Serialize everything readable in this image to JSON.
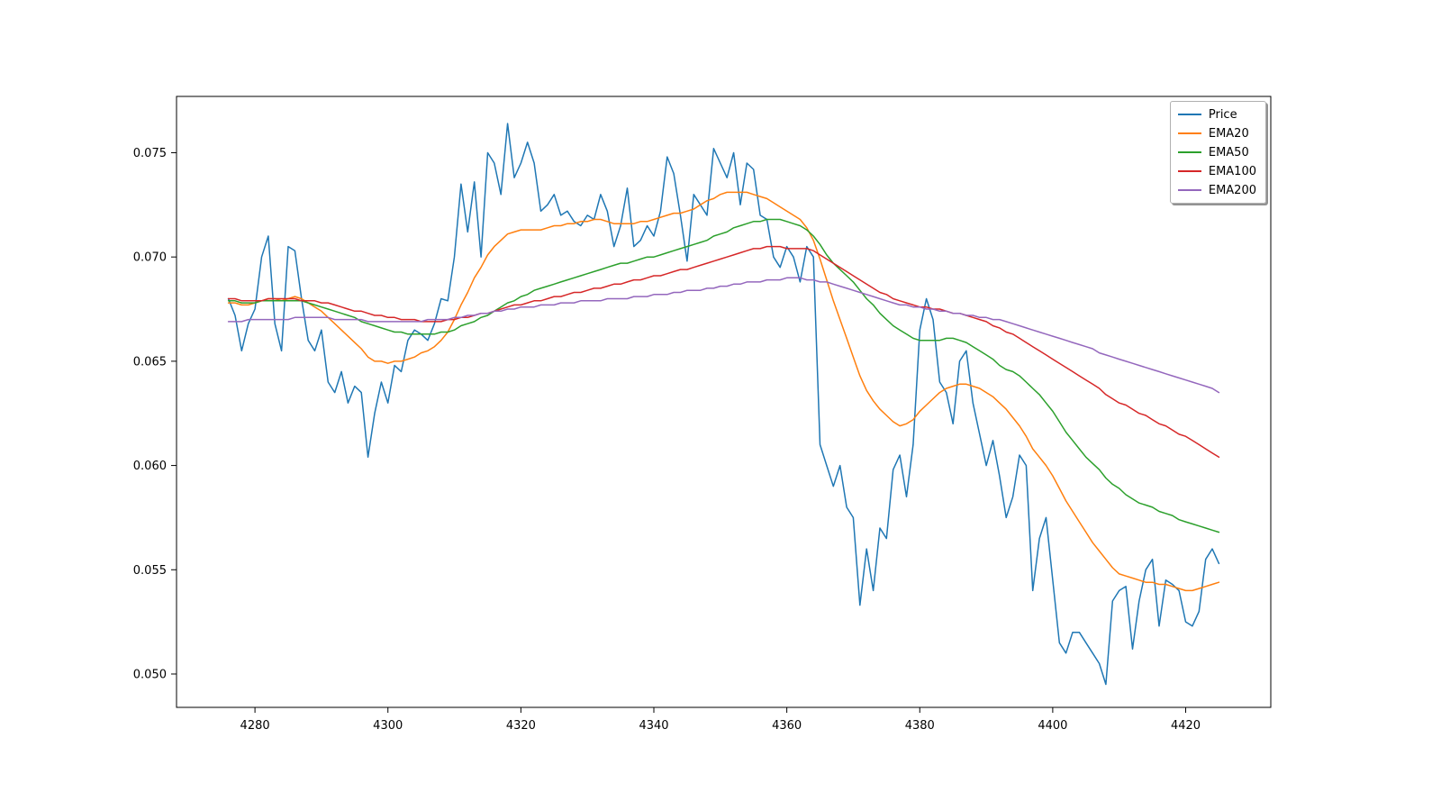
{
  "figure": {
    "background": "#ffffff",
    "axes_border_color": "#000000"
  },
  "legend": {
    "position": "top-right",
    "entries": [
      {
        "label": "Price",
        "color": "#1f77b4"
      },
      {
        "label": "EMA20",
        "color": "#ff7f0e"
      },
      {
        "label": "EMA50",
        "color": "#2ca02c"
      },
      {
        "label": "EMA100",
        "color": "#d62728"
      },
      {
        "label": "EMA200",
        "color": "#9467bd"
      }
    ]
  },
  "chart_data": {
    "type": "line",
    "title": "",
    "xlabel": "",
    "ylabel": "",
    "grid": false,
    "legend_position": "upper right",
    "xlim": [
      4268.2,
      4432.8
    ],
    "ylim": [
      0.0484,
      0.0777
    ],
    "x_ticks": [
      4280,
      4300,
      4320,
      4340,
      4360,
      4380,
      4400,
      4420
    ],
    "y_ticks": [
      0.05,
      0.055,
      0.06,
      0.065,
      0.07,
      0.075
    ],
    "x_start": 4276,
    "x_step": 1,
    "series": [
      {
        "name": "Price",
        "color": "#1f77b4",
        "values": [
          0.068,
          0.0672,
          0.0655,
          0.0668,
          0.0675,
          0.07,
          0.071,
          0.0668,
          0.0655,
          0.0705,
          0.0703,
          0.068,
          0.066,
          0.0655,
          0.0665,
          0.064,
          0.0635,
          0.0645,
          0.063,
          0.0638,
          0.0635,
          0.0604,
          0.0625,
          0.064,
          0.063,
          0.0648,
          0.0645,
          0.066,
          0.0665,
          0.0663,
          0.066,
          0.0668,
          0.068,
          0.0679,
          0.07,
          0.0735,
          0.0712,
          0.0736,
          0.07,
          0.075,
          0.0745,
          0.073,
          0.0764,
          0.0738,
          0.0745,
          0.0755,
          0.0745,
          0.0722,
          0.0725,
          0.073,
          0.072,
          0.0722,
          0.0717,
          0.0715,
          0.072,
          0.0718,
          0.073,
          0.0722,
          0.0705,
          0.0715,
          0.0733,
          0.0705,
          0.0708,
          0.0715,
          0.071,
          0.0722,
          0.0748,
          0.074,
          0.072,
          0.0698,
          0.073,
          0.0725,
          0.072,
          0.0752,
          0.0745,
          0.0738,
          0.075,
          0.0725,
          0.0745,
          0.0742,
          0.072,
          0.0718,
          0.07,
          0.0695,
          0.0705,
          0.07,
          0.0688,
          0.0705,
          0.07,
          0.061,
          0.06,
          0.059,
          0.06,
          0.058,
          0.0575,
          0.0533,
          0.056,
          0.054,
          0.057,
          0.0565,
          0.0598,
          0.0605,
          0.0585,
          0.061,
          0.0665,
          0.068,
          0.067,
          0.064,
          0.0635,
          0.062,
          0.065,
          0.0655,
          0.063,
          0.0615,
          0.06,
          0.0612,
          0.0595,
          0.0575,
          0.0585,
          0.0605,
          0.06,
          0.054,
          0.0565,
          0.0575,
          0.0545,
          0.0515,
          0.051,
          0.052,
          0.052,
          0.0515,
          0.051,
          0.0505,
          0.0495,
          0.0535,
          0.054,
          0.0542,
          0.0512,
          0.0535,
          0.055,
          0.0555,
          0.0523,
          0.0545,
          0.0543,
          0.054,
          0.0525,
          0.0523,
          0.053,
          0.0555,
          0.056,
          0.0553
        ]
      },
      {
        "name": "EMA20",
        "color": "#ff7f0e",
        "values": [
          0.0678,
          0.0678,
          0.0677,
          0.0677,
          0.0678,
          0.0679,
          0.068,
          0.068,
          0.0679,
          0.068,
          0.0681,
          0.068,
          0.0678,
          0.0676,
          0.0674,
          0.0671,
          0.0668,
          0.0665,
          0.0662,
          0.0659,
          0.0656,
          0.0652,
          0.065,
          0.065,
          0.0649,
          0.065,
          0.065,
          0.0651,
          0.0652,
          0.0654,
          0.0655,
          0.0657,
          0.066,
          0.0664,
          0.067,
          0.0677,
          0.0683,
          0.069,
          0.0695,
          0.0701,
          0.0705,
          0.0708,
          0.0711,
          0.0712,
          0.0713,
          0.0713,
          0.0713,
          0.0713,
          0.0714,
          0.0715,
          0.0715,
          0.0716,
          0.0716,
          0.0717,
          0.0717,
          0.0718,
          0.0718,
          0.0717,
          0.0716,
          0.0716,
          0.0716,
          0.0716,
          0.0717,
          0.0717,
          0.0718,
          0.0719,
          0.072,
          0.0721,
          0.0721,
          0.0722,
          0.0723,
          0.0725,
          0.0727,
          0.0728,
          0.073,
          0.0731,
          0.0731,
          0.0731,
          0.0731,
          0.073,
          0.0729,
          0.0728,
          0.0726,
          0.0724,
          0.0722,
          0.072,
          0.0718,
          0.0714,
          0.0708,
          0.0699,
          0.0689,
          0.0679,
          0.067,
          0.0661,
          0.0652,
          0.0643,
          0.0636,
          0.0631,
          0.0627,
          0.0624,
          0.0621,
          0.0619,
          0.062,
          0.0622,
          0.0626,
          0.0629,
          0.0632,
          0.0635,
          0.0637,
          0.0638,
          0.0639,
          0.0639,
          0.0638,
          0.0637,
          0.0635,
          0.0633,
          0.063,
          0.0627,
          0.0623,
          0.0619,
          0.0614,
          0.0608,
          0.0604,
          0.06,
          0.0595,
          0.0589,
          0.0583,
          0.0578,
          0.0573,
          0.0568,
          0.0563,
          0.0559,
          0.0555,
          0.0551,
          0.0548,
          0.0547,
          0.0546,
          0.0545,
          0.0544,
          0.0544,
          0.0543,
          0.0543,
          0.0542,
          0.0541,
          0.054,
          0.054,
          0.0541,
          0.0542,
          0.0543,
          0.0544
        ]
      },
      {
        "name": "EMA50",
        "color": "#2ca02c",
        "values": [
          0.0679,
          0.0679,
          0.0678,
          0.0678,
          0.0678,
          0.0679,
          0.0679,
          0.0679,
          0.0679,
          0.0679,
          0.0679,
          0.0679,
          0.0678,
          0.0677,
          0.0676,
          0.0675,
          0.0674,
          0.0673,
          0.0672,
          0.0671,
          0.0669,
          0.0668,
          0.0667,
          0.0666,
          0.0665,
          0.0664,
          0.0664,
          0.0663,
          0.0663,
          0.0663,
          0.0663,
          0.0663,
          0.0664,
          0.0664,
          0.0665,
          0.0667,
          0.0668,
          0.0669,
          0.0671,
          0.0672,
          0.0674,
          0.0676,
          0.0678,
          0.0679,
          0.0681,
          0.0682,
          0.0684,
          0.0685,
          0.0686,
          0.0687,
          0.0688,
          0.0689,
          0.069,
          0.0691,
          0.0692,
          0.0693,
          0.0694,
          0.0695,
          0.0696,
          0.0697,
          0.0697,
          0.0698,
          0.0699,
          0.07,
          0.07,
          0.0701,
          0.0702,
          0.0703,
          0.0704,
          0.0705,
          0.0706,
          0.0707,
          0.0708,
          0.071,
          0.0711,
          0.0712,
          0.0714,
          0.0715,
          0.0716,
          0.0717,
          0.0717,
          0.0718,
          0.0718,
          0.0718,
          0.0717,
          0.0716,
          0.0715,
          0.0713,
          0.071,
          0.0706,
          0.0701,
          0.0697,
          0.0694,
          0.0691,
          0.0688,
          0.0684,
          0.068,
          0.0677,
          0.0673,
          0.067,
          0.0667,
          0.0665,
          0.0663,
          0.0661,
          0.066,
          0.066,
          0.066,
          0.066,
          0.0661,
          0.0661,
          0.066,
          0.0659,
          0.0657,
          0.0655,
          0.0653,
          0.0651,
          0.0648,
          0.0646,
          0.0645,
          0.0643,
          0.064,
          0.0637,
          0.0634,
          0.063,
          0.0626,
          0.0621,
          0.0616,
          0.0612,
          0.0608,
          0.0604,
          0.0601,
          0.0598,
          0.0594,
          0.0591,
          0.0589,
          0.0586,
          0.0584,
          0.0582,
          0.0581,
          0.058,
          0.0578,
          0.0577,
          0.0576,
          0.0574,
          0.0573,
          0.0572,
          0.0571,
          0.057,
          0.0569,
          0.0568
        ]
      },
      {
        "name": "EMA100",
        "color": "#d62728",
        "values": [
          0.068,
          0.068,
          0.0679,
          0.0679,
          0.0679,
          0.0679,
          0.068,
          0.068,
          0.068,
          0.068,
          0.068,
          0.0679,
          0.0679,
          0.0679,
          0.0678,
          0.0678,
          0.0677,
          0.0676,
          0.0675,
          0.0674,
          0.0674,
          0.0673,
          0.0672,
          0.0672,
          0.0671,
          0.0671,
          0.067,
          0.067,
          0.067,
          0.0669,
          0.0669,
          0.0669,
          0.0669,
          0.067,
          0.067,
          0.0671,
          0.0671,
          0.0672,
          0.0673,
          0.0673,
          0.0674,
          0.0675,
          0.0676,
          0.0677,
          0.0677,
          0.0678,
          0.0679,
          0.0679,
          0.068,
          0.0681,
          0.0681,
          0.0682,
          0.0683,
          0.0683,
          0.0684,
          0.0685,
          0.0685,
          0.0686,
          0.0687,
          0.0687,
          0.0688,
          0.0689,
          0.0689,
          0.069,
          0.0691,
          0.0691,
          0.0692,
          0.0693,
          0.0694,
          0.0694,
          0.0695,
          0.0696,
          0.0697,
          0.0698,
          0.0699,
          0.07,
          0.0701,
          0.0702,
          0.0703,
          0.0704,
          0.0704,
          0.0705,
          0.0705,
          0.0705,
          0.0704,
          0.0704,
          0.0704,
          0.0704,
          0.0703,
          0.0701,
          0.0699,
          0.0697,
          0.0695,
          0.0693,
          0.0691,
          0.0689,
          0.0687,
          0.0685,
          0.0683,
          0.0682,
          0.068,
          0.0679,
          0.0678,
          0.0677,
          0.0676,
          0.0676,
          0.0675,
          0.0675,
          0.0674,
          0.0673,
          0.0673,
          0.0672,
          0.0671,
          0.067,
          0.0669,
          0.0667,
          0.0666,
          0.0664,
          0.0663,
          0.0661,
          0.0659,
          0.0657,
          0.0655,
          0.0653,
          0.0651,
          0.0649,
          0.0647,
          0.0645,
          0.0643,
          0.0641,
          0.0639,
          0.0637,
          0.0634,
          0.0632,
          0.063,
          0.0629,
          0.0627,
          0.0625,
          0.0624,
          0.0622,
          0.062,
          0.0619,
          0.0617,
          0.0615,
          0.0614,
          0.0612,
          0.061,
          0.0608,
          0.0606,
          0.0604
        ]
      },
      {
        "name": "EMA200",
        "color": "#9467bd",
        "values": [
          0.0669,
          0.0669,
          0.0669,
          0.067,
          0.067,
          0.067,
          0.067,
          0.067,
          0.067,
          0.067,
          0.0671,
          0.0671,
          0.0671,
          0.0671,
          0.0671,
          0.0671,
          0.067,
          0.067,
          0.067,
          0.067,
          0.067,
          0.0669,
          0.0669,
          0.0669,
          0.0669,
          0.0669,
          0.0669,
          0.0669,
          0.0669,
          0.0669,
          0.067,
          0.067,
          0.067,
          0.067,
          0.0671,
          0.0671,
          0.0672,
          0.0672,
          0.0673,
          0.0673,
          0.0674,
          0.0674,
          0.0675,
          0.0675,
          0.0676,
          0.0676,
          0.0676,
          0.0677,
          0.0677,
          0.0677,
          0.0678,
          0.0678,
          0.0678,
          0.0679,
          0.0679,
          0.0679,
          0.0679,
          0.068,
          0.068,
          0.068,
          0.068,
          0.0681,
          0.0681,
          0.0681,
          0.0682,
          0.0682,
          0.0682,
          0.0683,
          0.0683,
          0.0684,
          0.0684,
          0.0684,
          0.0685,
          0.0685,
          0.0686,
          0.0686,
          0.0687,
          0.0687,
          0.0688,
          0.0688,
          0.0688,
          0.0689,
          0.0689,
          0.0689,
          0.069,
          0.069,
          0.069,
          0.0689,
          0.0689,
          0.0688,
          0.0688,
          0.0687,
          0.0686,
          0.0685,
          0.0684,
          0.0683,
          0.0682,
          0.0681,
          0.068,
          0.0679,
          0.0678,
          0.0677,
          0.0677,
          0.0676,
          0.0676,
          0.0675,
          0.0675,
          0.0674,
          0.0674,
          0.0673,
          0.0673,
          0.0672,
          0.0672,
          0.0671,
          0.0671,
          0.067,
          0.067,
          0.0669,
          0.0668,
          0.0667,
          0.0666,
          0.0665,
          0.0664,
          0.0663,
          0.0662,
          0.0661,
          0.066,
          0.0659,
          0.0658,
          0.0657,
          0.0656,
          0.0654,
          0.0653,
          0.0652,
          0.0651,
          0.065,
          0.0649,
          0.0648,
          0.0647,
          0.0646,
          0.0645,
          0.0644,
          0.0643,
          0.0642,
          0.0641,
          0.064,
          0.0639,
          0.0638,
          0.0637,
          0.0635
        ]
      }
    ]
  }
}
